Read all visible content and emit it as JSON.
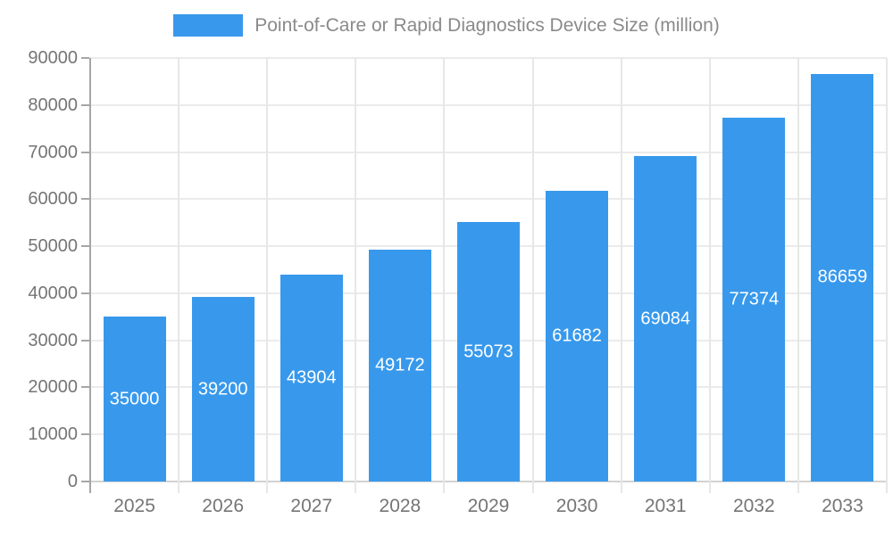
{
  "chart_data": {
    "type": "bar",
    "title": "Point-of-Care or Rapid Diagnostics Device Size (million)",
    "categories": [
      "2025",
      "2026",
      "2027",
      "2028",
      "2029",
      "2030",
      "2031",
      "2032",
      "2033"
    ],
    "values": [
      35000,
      39200,
      43904,
      49172,
      55073,
      61682,
      69084,
      77374,
      86659
    ],
    "series": [
      {
        "name": "Point-of-Care or Rapid Diagnostics Device Size (million)",
        "values": [
          35000,
          39200,
          43904,
          49172,
          55073,
          61682,
          69084,
          77374,
          86659
        ]
      }
    ],
    "xlabel": "",
    "ylabel": "",
    "ylim": [
      0,
      90000
    ],
    "ytick_step": 10000,
    "ytick_labels": [
      "0",
      "10000",
      "20000",
      "30000",
      "40000",
      "50000",
      "60000",
      "70000",
      "80000",
      "90000"
    ],
    "grid": true,
    "legend_position": "top-center",
    "value_labels_position": "inside-center",
    "colors": {
      "bar": "#3899EC",
      "bar_value_text": "#ffffff",
      "axis_text": "#757575",
      "legend_text": "#8a8a8a",
      "gridline": "#ebebeb",
      "axis_line": "#a6a6a6"
    }
  }
}
